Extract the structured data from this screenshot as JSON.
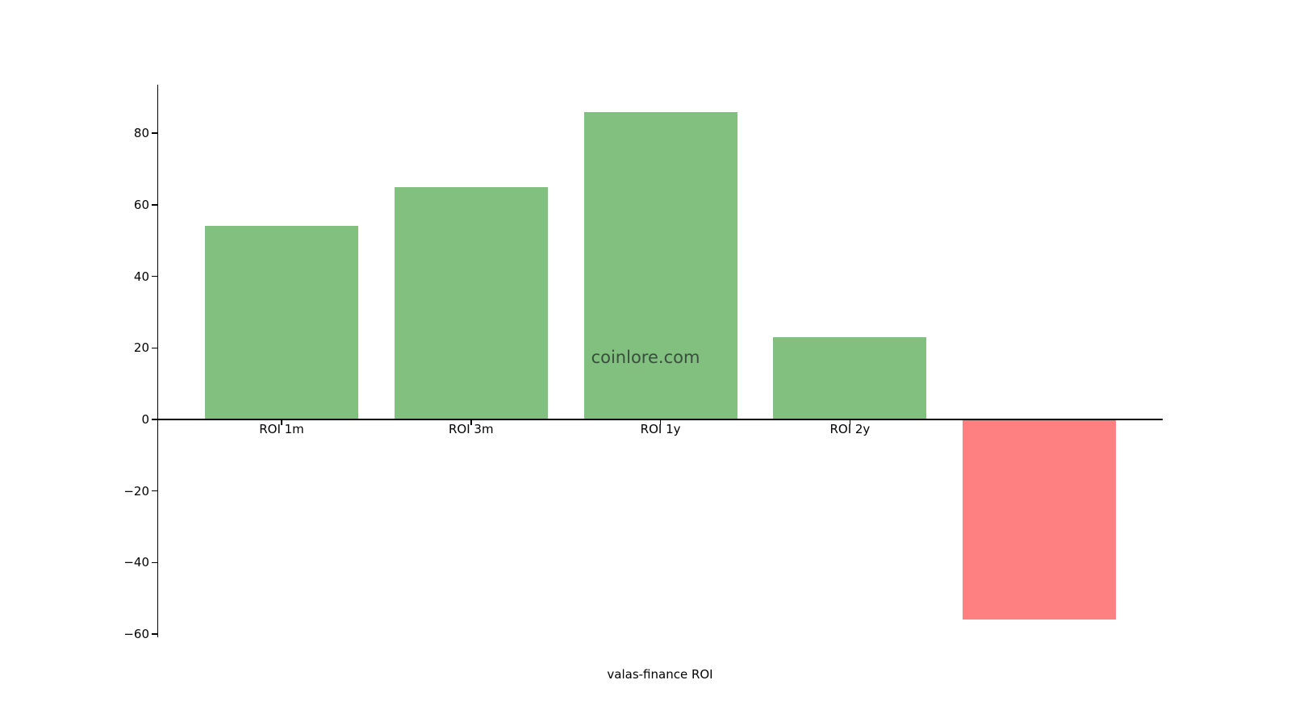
{
  "chart_data": {
    "type": "bar",
    "title": "valas-finance ROI",
    "watermark": "coinlore.com",
    "categories": [
      "ROI 1m",
      "ROI 3m",
      "ROI 1y",
      "ROI 2y",
      ""
    ],
    "values": [
      54,
      65,
      86,
      23,
      -56
    ],
    "yticks": [
      80,
      60,
      40,
      20,
      0,
      -20,
      -40,
      -60
    ],
    "ylim": [
      -61,
      94
    ],
    "xlabel": "valas-finance ROI",
    "ylabel": "",
    "grid": false,
    "legend": "none",
    "colors": {
      "positive_bar": "#81c07f",
      "negative_bar": "#ff8080",
      "axis": "#000000",
      "tick_text": "#000000",
      "watermark_text": "#3d4b41"
    }
  }
}
